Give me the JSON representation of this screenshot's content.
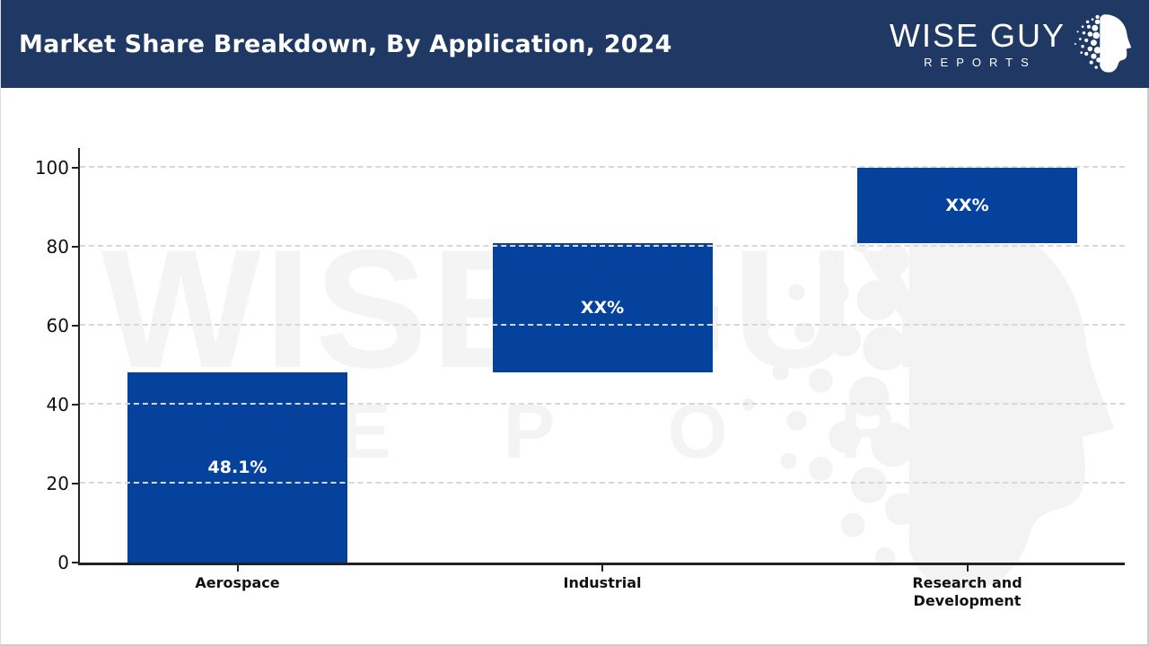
{
  "header": {
    "title": "Market Share Breakdown, By Application, 2024",
    "logo": {
      "name_top": "WISE GUY",
      "name_bottom": "REPORTS"
    }
  },
  "watermark": {
    "text_top": "WISE GUY",
    "text_bottom": "REPORTS"
  },
  "chart_data": {
    "type": "bar",
    "variant": "floating-cumulative-percent",
    "title": "Market Share Breakdown, By Application, 2024",
    "categories": [
      "Aerospace",
      "Industrial",
      "Research and Development"
    ],
    "bars": [
      {
        "category": "Aerospace",
        "start": 0,
        "end": 48.1,
        "label": "48.1%"
      },
      {
        "category": "Industrial",
        "start": 48.1,
        "end": 81,
        "label": "XX%"
      },
      {
        "category": "Research and Development",
        "start": 81,
        "end": 100,
        "label": "XX%"
      }
    ],
    "xlabel": "",
    "ylabel": "",
    "yticks": [
      0,
      20,
      40,
      60,
      80,
      100
    ],
    "ylim": [
      0,
      105
    ],
    "grid": "dashed-horizontal-over-bars",
    "legend": "none"
  },
  "colors": {
    "header_bg": "#1f3864",
    "bar": "#05429e",
    "gridline": "#d8d8d8",
    "axis": "#222222",
    "watermark": "#f4f4f4",
    "title_text": "#ffffff",
    "bar_label_text": "#ffffff"
  }
}
